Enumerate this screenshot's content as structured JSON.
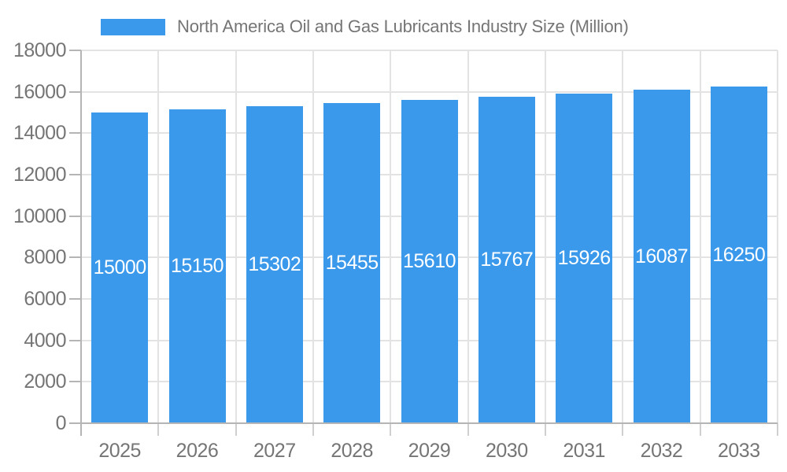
{
  "chart_data": {
    "type": "bar",
    "title": "North America Oil and Gas Lubricants Industry Size (Million)",
    "legend_entries": [
      "North America Oil and Gas Lubricants Industry Size (Million)"
    ],
    "legend_position": "top",
    "categories": [
      "2025",
      "2026",
      "2027",
      "2028",
      "2029",
      "2030",
      "2031",
      "2032",
      "2033"
    ],
    "values": [
      15000,
      15150,
      15302,
      15455,
      15610,
      15767,
      15926,
      16087,
      16250
    ],
    "xlabel": "",
    "ylabel": "",
    "ylim": [
      0,
      18000
    ],
    "ytick_step": 2000,
    "y_tick_labels": [
      "0",
      "2000",
      "4000",
      "6000",
      "8000",
      "10000",
      "12000",
      "14000",
      "16000",
      "18000"
    ],
    "grid": true,
    "bar_value_labels_shown": true,
    "colors": {
      "bar": "#3B99EC",
      "bar_label": "#FFFFFF",
      "axis_text": "#757575",
      "grid_line": "#E3E3E3",
      "axis_line": "#B5B5B5",
      "tick": "#CFCFCF",
      "background": "#FFFFFF"
    }
  }
}
